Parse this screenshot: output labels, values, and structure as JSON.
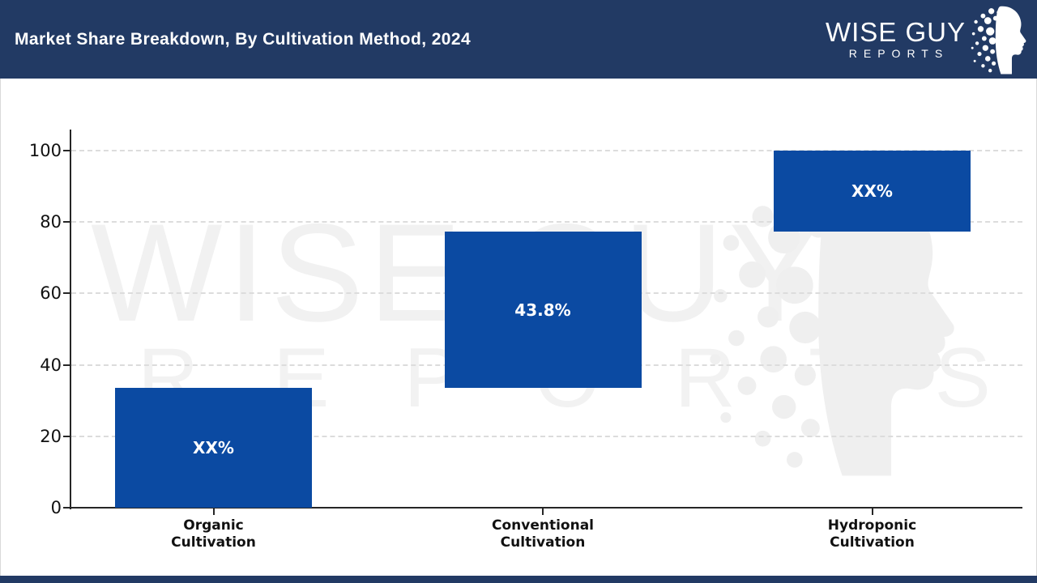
{
  "page": {
    "background": "#ffffff",
    "border_color": "#d9d9d9"
  },
  "header": {
    "title": "Market Share Breakdown, By Cultivation Method, 2024",
    "bg_color": "#223a64",
    "text_color": "#ffffff"
  },
  "logo": {
    "name": "WISE GUY",
    "sub": "REPORTS",
    "icon": "face-profile-dots-icon"
  },
  "watermark": {
    "name": "WISE GUY",
    "sub": "REPORTS",
    "color": "#f1f1f1"
  },
  "footer": {
    "bg_color": "#223a64"
  },
  "chart_data": {
    "type": "bar",
    "subtype": "waterfall",
    "title": "Market Share Breakdown, By Cultivation Method, 2024",
    "categories": [
      [
        "Organic",
        "Cultivation"
      ],
      [
        "Conventional",
        "Cultivation"
      ],
      [
        "Hydroponic",
        "Cultivation"
      ]
    ],
    "segments": [
      {
        "category": "Organic Cultivation",
        "start": 0,
        "end": 33.5,
        "value": 33.5,
        "label": "XX%"
      },
      {
        "category": "Conventional Cultivation",
        "start": 33.5,
        "end": 77.3,
        "value": 43.8,
        "label": "43.8%"
      },
      {
        "category": "Hydroponic Cultivation",
        "start": 77.3,
        "end": 100,
        "value": 22.7,
        "label": "XX%"
      }
    ],
    "yticks": [
      0,
      20,
      40,
      60,
      80,
      100
    ],
    "ylim": [
      0,
      100
    ],
    "xlabel": "",
    "ylabel": "",
    "bar_color": "#0b4aa2",
    "bar_label_color": "#ffffff",
    "grid": {
      "show": true,
      "style": "dashed",
      "color": "#dcdcdc"
    },
    "legend": null
  }
}
